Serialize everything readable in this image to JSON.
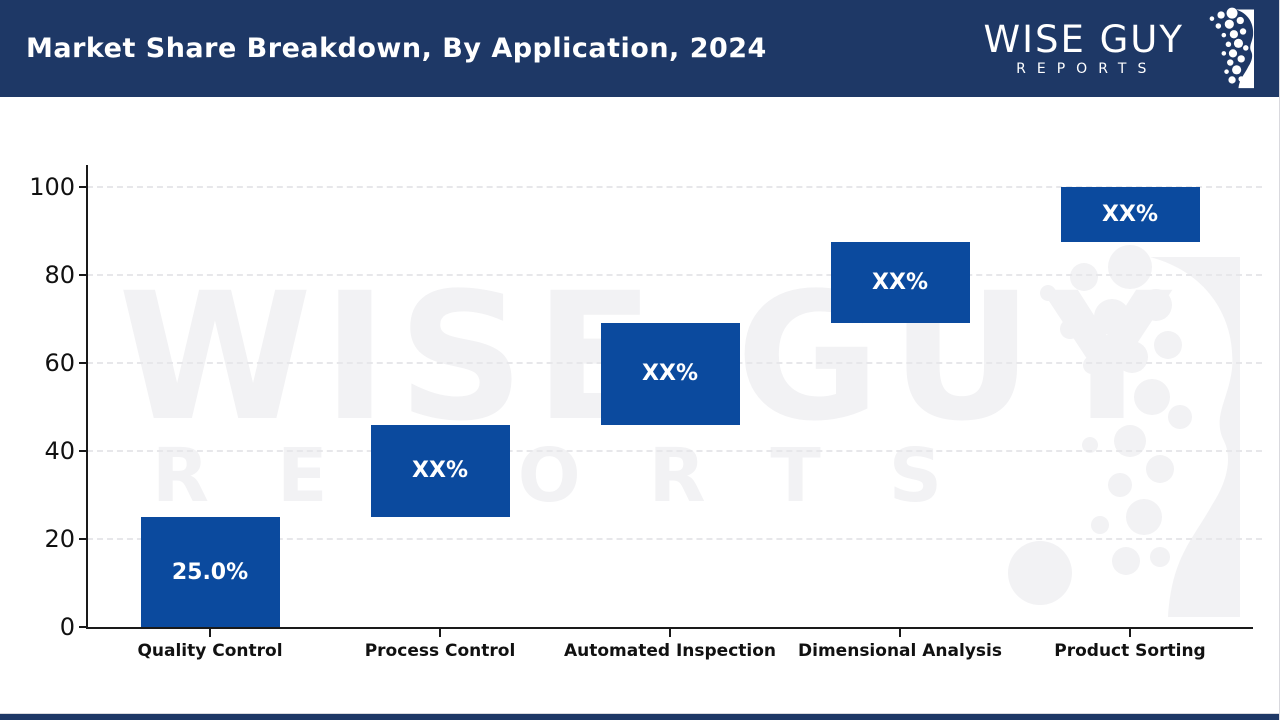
{
  "header": {
    "title": "Market Share Breakdown, By Application, 2024",
    "logo": {
      "line1": "WISE GUY",
      "line2": "REPORTS"
    }
  },
  "watermark": {
    "line1": "WISE GUY",
    "line2": "REPORTS"
  },
  "colors": {
    "header_bg": "#1e3866",
    "bar": "#0b4a9e",
    "bar_label_text": "#ffffff",
    "axis": "#1a1a1a",
    "gridline": "#e7e7ea",
    "watermark": "#f2f2f4"
  },
  "chart_data": {
    "type": "bar",
    "style": "waterfall",
    "title": "Market Share Breakdown, By Application, 2024",
    "categories": [
      "Quality Control",
      "Process Control",
      "Automated Inspection",
      "Dimensional Analysis",
      "Product Sorting"
    ],
    "segments": [
      {
        "category": "Quality Control",
        "start": 0,
        "end": 25,
        "label": "25.0%"
      },
      {
        "category": "Process Control",
        "start": 25,
        "end": 46,
        "label": "XX%"
      },
      {
        "category": "Automated Inspection",
        "start": 46,
        "end": 69,
        "label": "XX%"
      },
      {
        "category": "Dimensional Analysis",
        "start": 69,
        "end": 87.5,
        "label": "XX%"
      },
      {
        "category": "Product Sorting",
        "start": 87.5,
        "end": 100,
        "label": "XX%"
      }
    ],
    "yticks": [
      0,
      20,
      40,
      60,
      80,
      100
    ],
    "ylim": [
      0,
      105
    ],
    "xlabel": "",
    "ylabel": "",
    "grid": "horizontal-dashed",
    "legend": "none"
  }
}
